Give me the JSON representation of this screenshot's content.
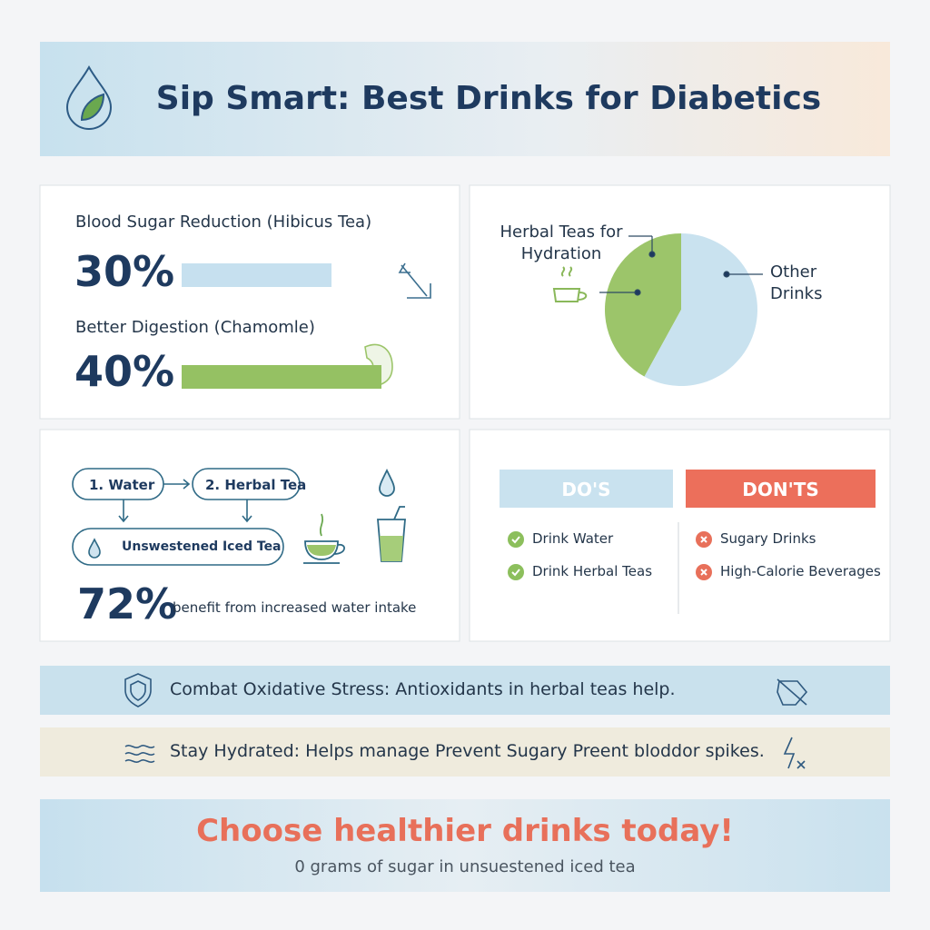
{
  "header": {
    "title": "Sip Smart: Best Drinks for Diabetics"
  },
  "stats": [
    {
      "label": "Blood Sugar Reduction (Hibicus Tea)",
      "value": 30,
      "value_label": "30%",
      "color": "#c6e0ef"
    },
    {
      "label": "Better Digestion (Chamomle)",
      "value": 40,
      "value_label": "40%",
      "color": "#95c163"
    }
  ],
  "pie": {
    "type": "pie",
    "slices": [
      {
        "label": "Herbal Teas for Hydration",
        "value": 42,
        "color": "#9cc56a"
      },
      {
        "label": "Other Drinks",
        "value": 58,
        "color": "#c9e2ef"
      }
    ]
  },
  "flow": {
    "steps": [
      "1.  Water",
      "2. Herbal Tea",
      "Unswestened Iced Tea"
    ],
    "stat": {
      "value": 72,
      "value_label": "72%",
      "text": "benefit from increased water intake"
    }
  },
  "dos": {
    "title": "DO'S",
    "items": [
      "Drink Water",
      "Drink Herbal Teas"
    ]
  },
  "donts": {
    "title": "DON'TS",
    "items": [
      "Sugary Drinks",
      "High-Calorie Beverages"
    ]
  },
  "banners": [
    "Combat Oxidative Stress: Antioxidants in herbal teas help.",
    "Stay Hydrated: Helps manage  Prevent Sugary Preent bloddor spikes."
  ],
  "footer": {
    "title": "Choose healthier drinks today!",
    "subtitle": "0 grams of sugar in unsuestened iced tea"
  }
}
